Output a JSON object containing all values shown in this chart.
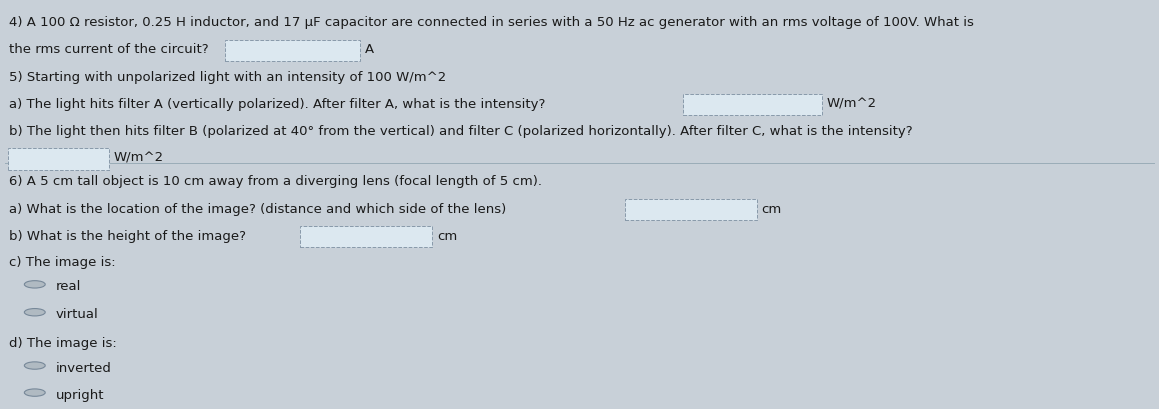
{
  "bg_color": "#c8d0d8",
  "text_color": "#1a1a1a",
  "font_size": 9.5,
  "box_facecolor": "#dce8f0",
  "box_edgecolor": "#8899aa",
  "divider_color": "#aaaaaa",
  "radio_face": "#b8c4cc",
  "radio_edge": "#8899aa",
  "radio_inner": "#c8d4dc",
  "line4_1": "4) A 100 Ω resistor, 0.25 H inductor, and 17 μF capacitor are connected in series with a 50 Hz ac generator with an rms voltage of 100V. What is",
  "line4_2": "the rms current of the circuit?",
  "line4_2_after": "A",
  "line5": "5) Starting with unpolarized light with an intensity of 100 W/m^2",
  "line5a_before": "a) The light hits filter A (vertically polarized). After filter A, what is the intensity?",
  "line5a_after": "W/m^2",
  "line5b": "b) The light then hits filter B (polarized at 40° from the vertical) and filter C (polarized horizontally). After filter C, what is the intensity?",
  "line5b_after": "W/m^2",
  "line6": "6) A 5 cm tall object is 10 cm away from a diverging lens (focal length of 5 cm).",
  "line6a_before": "a) What is the location of the image? (distance and which side of the lens)",
  "line6a_after": "cm",
  "line6b_before": "b) What is the height of the image?",
  "line6b_after": "cm",
  "line6c": "c) The image is:",
  "radio_real": "real",
  "radio_virtual": "virtual",
  "line6d": "d) The image is:",
  "radio_inverted": "inverted",
  "radio_upright": "upright"
}
